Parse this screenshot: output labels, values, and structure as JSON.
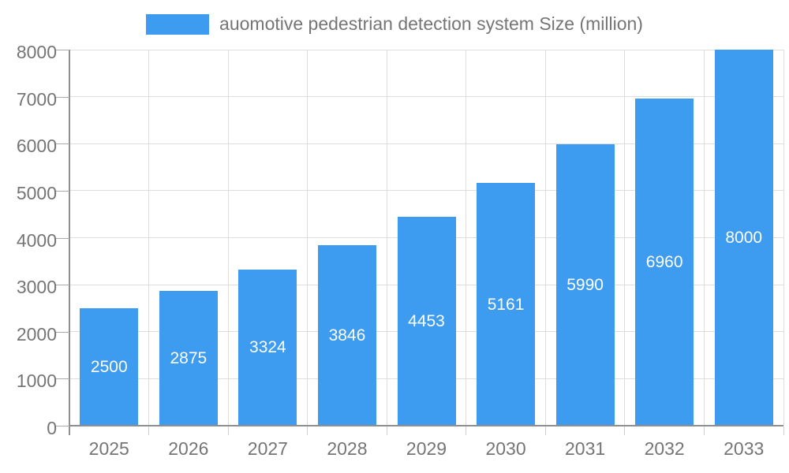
{
  "chart_data": {
    "type": "bar",
    "title": "auomotive pedestrian detection system Size (million)",
    "categories": [
      "2025",
      "2026",
      "2027",
      "2028",
      "2029",
      "2030",
      "2031",
      "2032",
      "2033"
    ],
    "values": [
      2500,
      2875,
      3324,
      3846,
      4453,
      5161,
      5990,
      6960,
      8000
    ],
    "xlabel": "",
    "ylabel": "",
    "ylim": [
      0,
      8000
    ],
    "ytick_step": 1000,
    "ytick_labels": [
      "0",
      "1000",
      "2000",
      "3000",
      "4000",
      "5000",
      "6000",
      "7000",
      "8000"
    ],
    "grid": true,
    "legend_position": "top",
    "bar_color": "#3D9BF0",
    "bar_label_color": "#FFFFFF",
    "axis_text_color": "#757575",
    "grid_color": "#DDDDDD",
    "axis_line_color": "#8E8E8E",
    "tick_color": "#AAAAAA",
    "x_tick_color": "#CFCFCF"
  }
}
